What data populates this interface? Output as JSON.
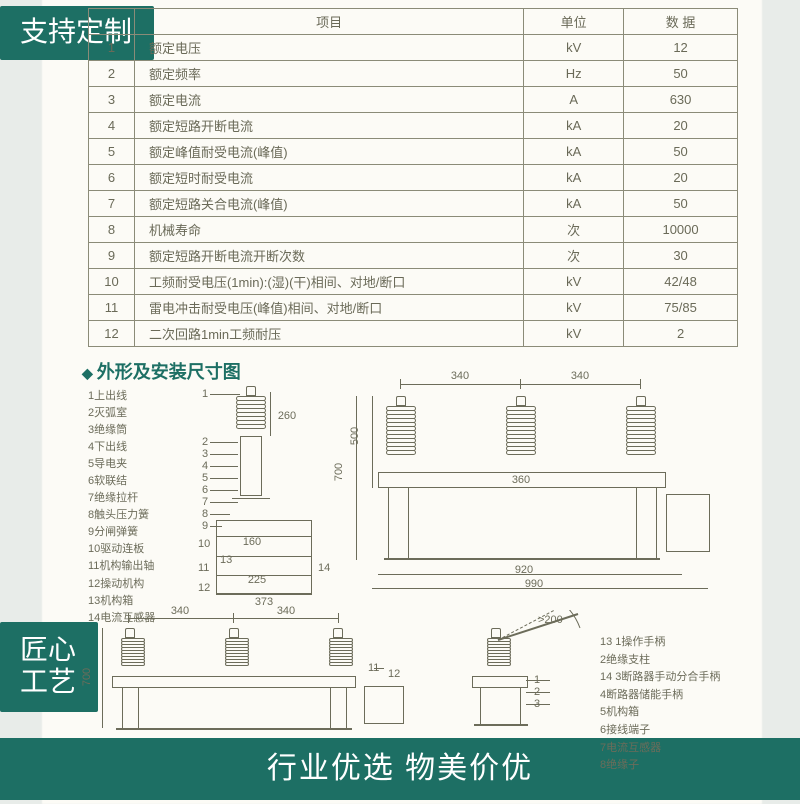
{
  "badges": {
    "top_left": "支持定制",
    "bottom_left": "匠心\n工艺"
  },
  "bottom_bar": "行业优选 物美价优",
  "section_title": "外形及安装尺寸图",
  "table": {
    "headers": {
      "item": "项目",
      "unit": "单位",
      "value": "数 据"
    },
    "rows": [
      {
        "n": "1",
        "item": "额定电压",
        "unit": "kV",
        "value": "12"
      },
      {
        "n": "2",
        "item": "额定频率",
        "unit": "Hz",
        "value": "50"
      },
      {
        "n": "3",
        "item": "额定电流",
        "unit": "A",
        "value": "630"
      },
      {
        "n": "4",
        "item": "额定短路开断电流",
        "unit": "kA",
        "value": "20"
      },
      {
        "n": "5",
        "item": "额定峰值耐受电流(峰值)",
        "unit": "kA",
        "value": "50"
      },
      {
        "n": "6",
        "item": "额定短时耐受电流",
        "unit": "kA",
        "value": "20"
      },
      {
        "n": "7",
        "item": "额定短路关合电流(峰值)",
        "unit": "kA",
        "value": "50"
      },
      {
        "n": "8",
        "item": "机械寿命",
        "unit": "次",
        "value": "10000"
      },
      {
        "n": "9",
        "item": "额定短路开断电流开断次数",
        "unit": "次",
        "value": "30"
      },
      {
        "n": "10",
        "item": "工频耐受电压(1min):(湿)(干)相间、对地/断口",
        "unit": "kV",
        "value": "42/48"
      },
      {
        "n": "11",
        "item": "雷电冲击耐受电压(峰值)相间、对地/断口",
        "unit": "kV",
        "value": "75/85"
      },
      {
        "n": "12",
        "item": "二次回路1min工频耐压",
        "unit": "kV",
        "value": "2"
      }
    ]
  },
  "legend_left": [
    "1上出线",
    "2灭弧室",
    "3绝缘筒",
    "4下出线",
    "5导电夹",
    "6软联结",
    "7绝缘拉杆",
    "8触头压力簧",
    "9分闸弹簧",
    "10驱动连板",
    "11机构输出轴",
    "12操动机构",
    "13机构箱",
    "14电流互感器"
  ],
  "legend_right": [
    "13 1操作手柄",
    "2绝缘支柱",
    "14 3断路器手动分合手柄",
    "4断路器储能手柄",
    "5机构箱",
    "6接线端子",
    "7电流互感器",
    "8绝缘子"
  ],
  "dimensions": {
    "top_row": [
      "340",
      "340"
    ],
    "front_h": "700",
    "front_h2": "500",
    "base_w": "360",
    "outer_w": "920",
    "outer_w2": "990",
    "side_upper": "260",
    "side_box": [
      "160",
      "225",
      "373"
    ],
    "small14": "14",
    "bottom_row": [
      "340",
      "340"
    ],
    "bottom_h": "700",
    "bottom_arc": ">200"
  },
  "colors": {
    "teal": "#1d6f64",
    "paper": "#fcfbf6",
    "ink": "#6c6c5a",
    "page_bg": "#e8ece9"
  }
}
